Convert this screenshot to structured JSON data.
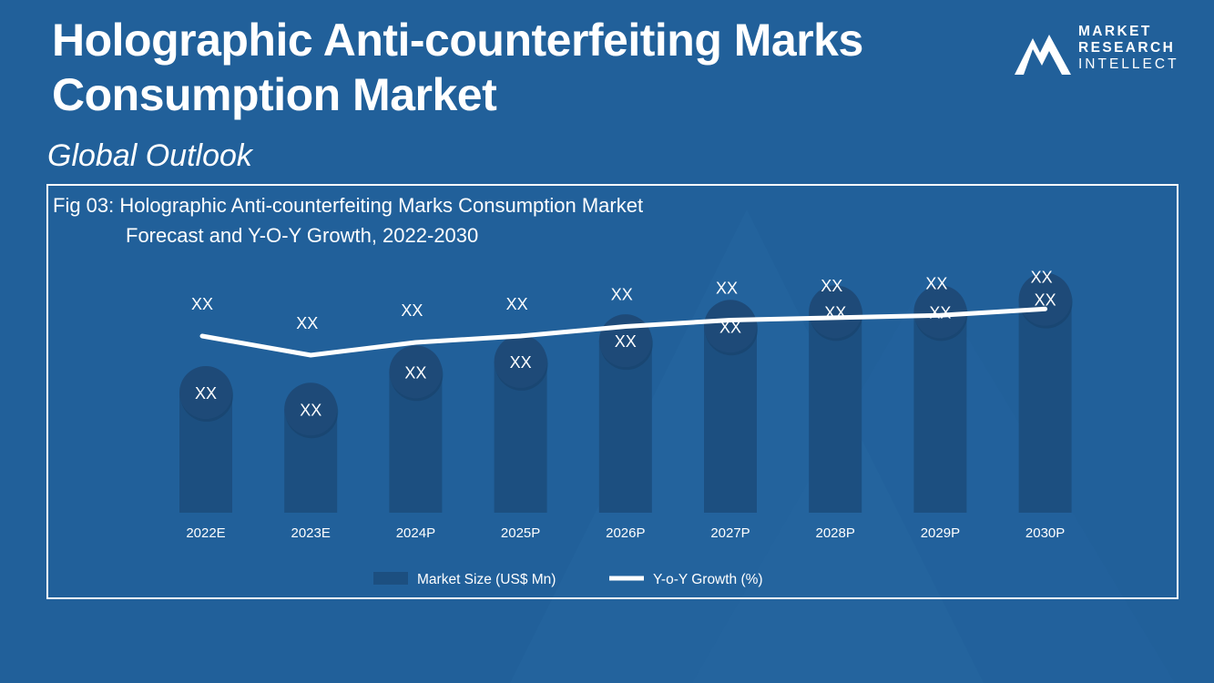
{
  "header": {
    "title": "Holographic Anti-counterfeiting Marks Consumption Market",
    "subtitle": "Global Outlook"
  },
  "logo": {
    "line1": "MARKET",
    "line2": "RESEARCH",
    "line3": "INTELLECT"
  },
  "colors": {
    "background": "#21609a",
    "bar": "#1c4f80",
    "bubble": "#1e4a78",
    "line": "#ffffff"
  },
  "chart_data": {
    "type": "bar",
    "title_line1": "Fig 03: Holographic Anti-counterfeiting Marks Consumption Market",
    "title_line2": "Forecast and Y-O-Y Growth, 2022-2030",
    "categories": [
      "2022E",
      "2023E",
      "2024P",
      "2025P",
      "2026P",
      "2027P",
      "2028P",
      "2029P",
      "2030P"
    ],
    "series": [
      {
        "name": "Market Size (US$ Mn)",
        "type": "bar",
        "values": [
          58,
          50,
          68,
          73,
          83,
          90,
          97,
          97,
          103
        ],
        "labels": [
          "XX",
          "XX",
          "XX",
          "XX",
          "XX",
          "XX",
          "XX",
          "XX",
          "XX"
        ]
      },
      {
        "name": "Y-o-Y Growth (%)",
        "type": "line",
        "values": [
          52,
          40,
          48,
          52,
          58,
          62,
          63.5,
          65,
          69
        ],
        "labels": [
          "XX",
          "XX",
          "XX",
          "XX",
          "XX",
          "XX",
          "XX",
          "XX",
          "XX"
        ]
      }
    ],
    "ylim": [
      0,
      120
    ],
    "legend_position": "bottom-center"
  }
}
